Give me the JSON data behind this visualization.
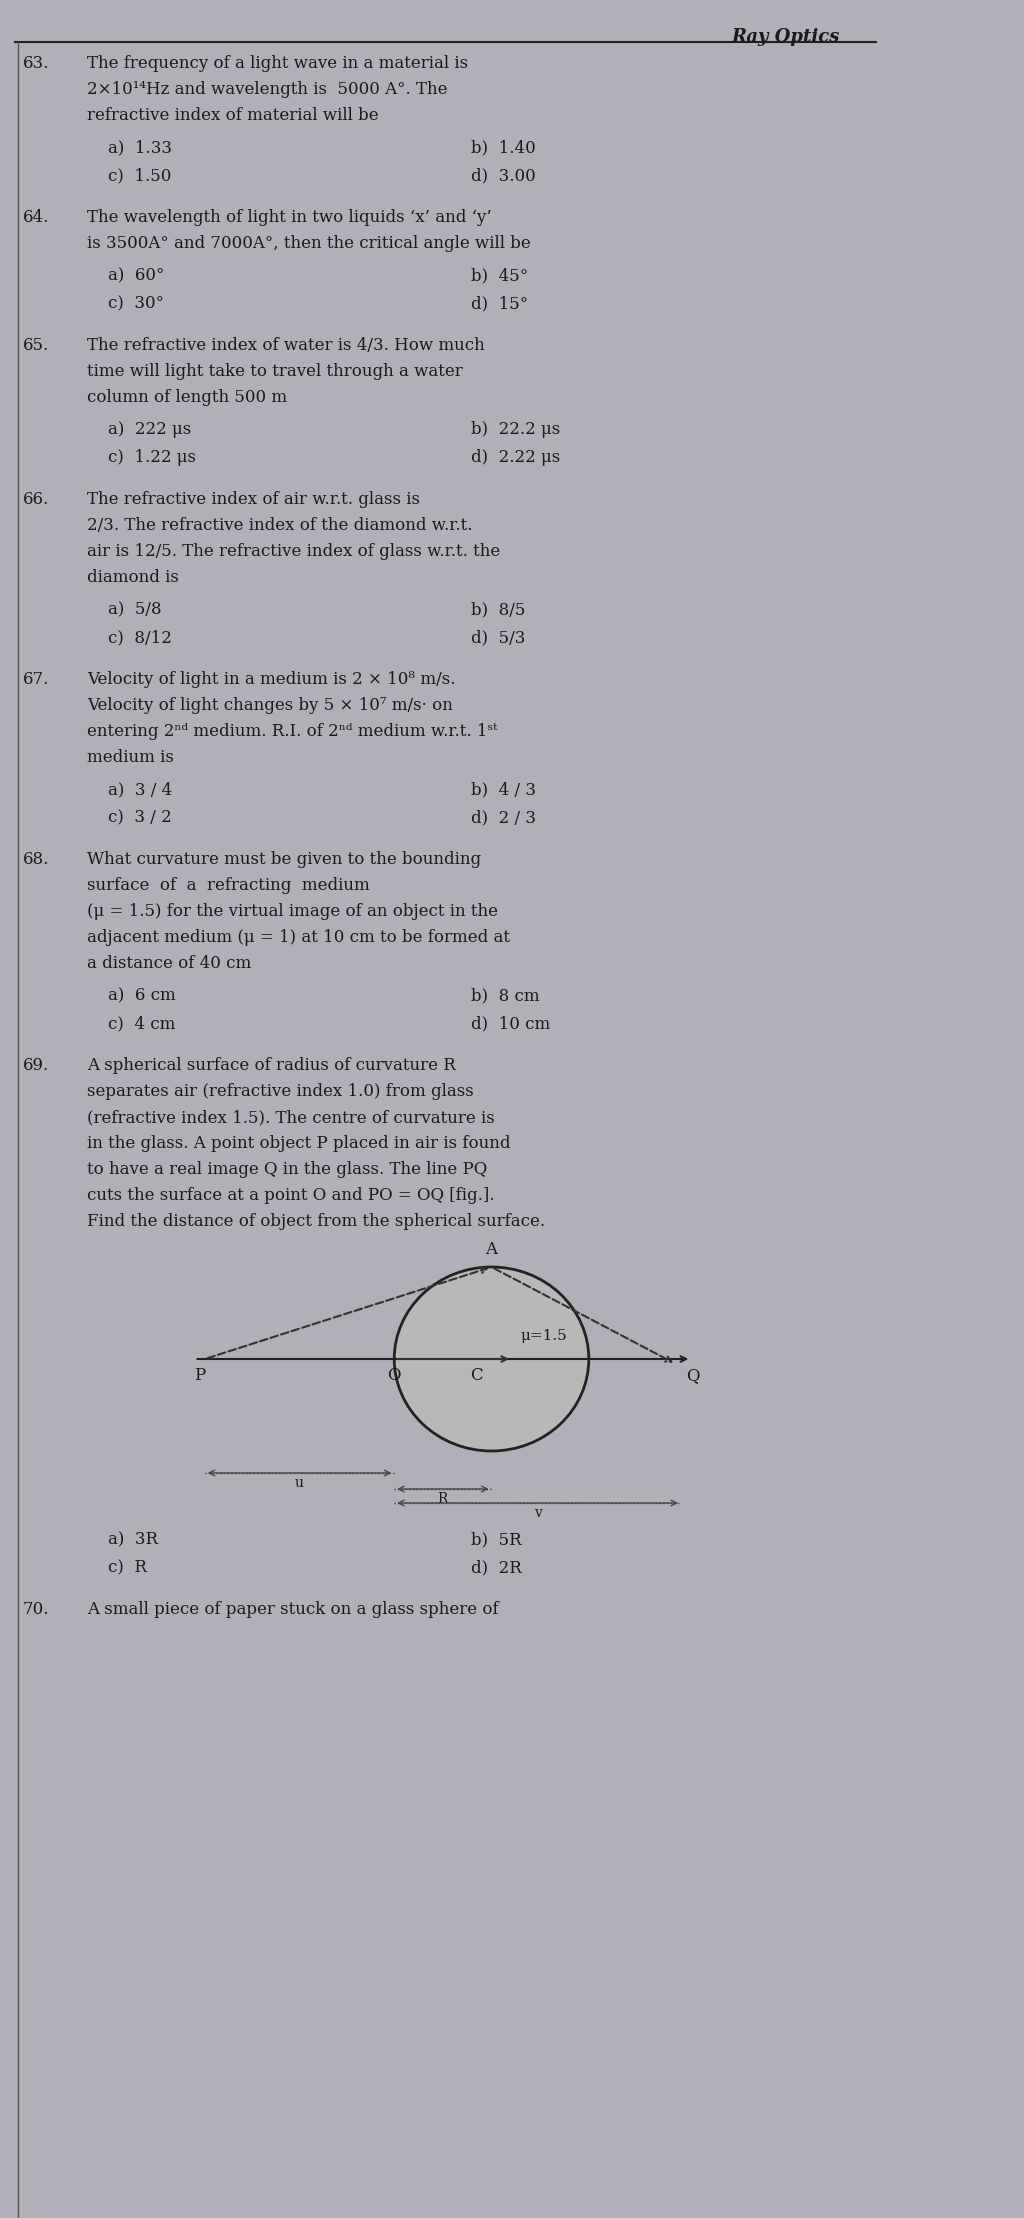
{
  "title": "Ray Optics",
  "outer_bg": "#b0b0b8",
  "page_bg": "#e8e8e8",
  "text_color": "#1a1a1a",
  "title_fontsize": 13,
  "body_fontsize": 12,
  "questions": [
    {
      "num": "63.",
      "lines": [
        "The frequency of a light wave in a material is",
        "2×10¹⁴Hz and wavelength is  5000 A°. The",
        "refractive index of material will be"
      ],
      "opts": [
        [
          "a)  1.33",
          "b)  1.40"
        ],
        [
          "c)  1.50",
          "d)  3.00"
        ]
      ]
    },
    {
      "num": "64.",
      "lines": [
        "The wavelength of light in two liquids ‘x’ and ‘y’",
        "is 3500A° and 7000A°, then the critical angle will be"
      ],
      "opts": [
        [
          "a)  60°",
          "b)  45°"
        ],
        [
          "c)  30°",
          "d)  15°"
        ]
      ]
    },
    {
      "num": "65.",
      "lines": [
        "The refractive index of water is 4/3. How much",
        "time will light take to travel through a water",
        "column of length 500 m"
      ],
      "opts": [
        [
          "a)  222 μs",
          "b)  22.2 μs"
        ],
        [
          "c)  1.22 μs",
          "d)  2.22 μs"
        ]
      ]
    },
    {
      "num": "66.",
      "lines": [
        "The refractive index of air w.r.t. glass is",
        "2/3. The refractive index of the diamond w.r.t.",
        "air is 12/5. The refractive index of glass w.r.t. the",
        "diamond is"
      ],
      "opts": [
        [
          "a)  5/8",
          "b)  8/5"
        ],
        [
          "c)  8/12",
          "d)  5/3"
        ]
      ]
    },
    {
      "num": "67.",
      "lines": [
        "Velocity of light in a medium is 2 × 10⁸ m/s.",
        "Velocity of light changes by 5 × 10⁷ m/s· on",
        "entering 2ⁿᵈ medium. R.I. of 2ⁿᵈ medium w.r.t. 1ˢᵗ",
        "medium is"
      ],
      "opts": [
        [
          "a)  3 / 4",
          "b)  4 / 3"
        ],
        [
          "c)  3 / 2",
          "d)  2 / 3"
        ]
      ]
    },
    {
      "num": "68.",
      "lines": [
        "What curvature must be given to the bounding",
        "surface  of  a  refracting  medium",
        "(μ = 1.5) for the virtual image of an object in the",
        "adjacent medium (μ = 1) at 10 cm to be formed at",
        "a distance of 40 cm"
      ],
      "opts": [
        [
          "a)  6 cm",
          "b)  8 cm"
        ],
        [
          "c)  4 cm",
          "d)  10 cm"
        ]
      ]
    },
    {
      "num": "69.",
      "lines": [
        "A spherical surface of radius of curvature R",
        "separates air (refractive index 1.0) from glass",
        "(refractive index 1.5). The centre of curvature is",
        "in the glass. A point object P placed in air is found",
        "to have a real image Q in the glass. The line PQ",
        "cuts the surface at a point O and PO = OQ [fig.].",
        "Find the distance of object from the spherical surface."
      ],
      "opts": [
        [
          "a)  3R",
          "b)  5R"
        ],
        [
          "c)  R",
          "d)  2R"
        ]
      ]
    }
  ],
  "q70": "70.   A small piece of paper stuck on a glass sphere of"
}
